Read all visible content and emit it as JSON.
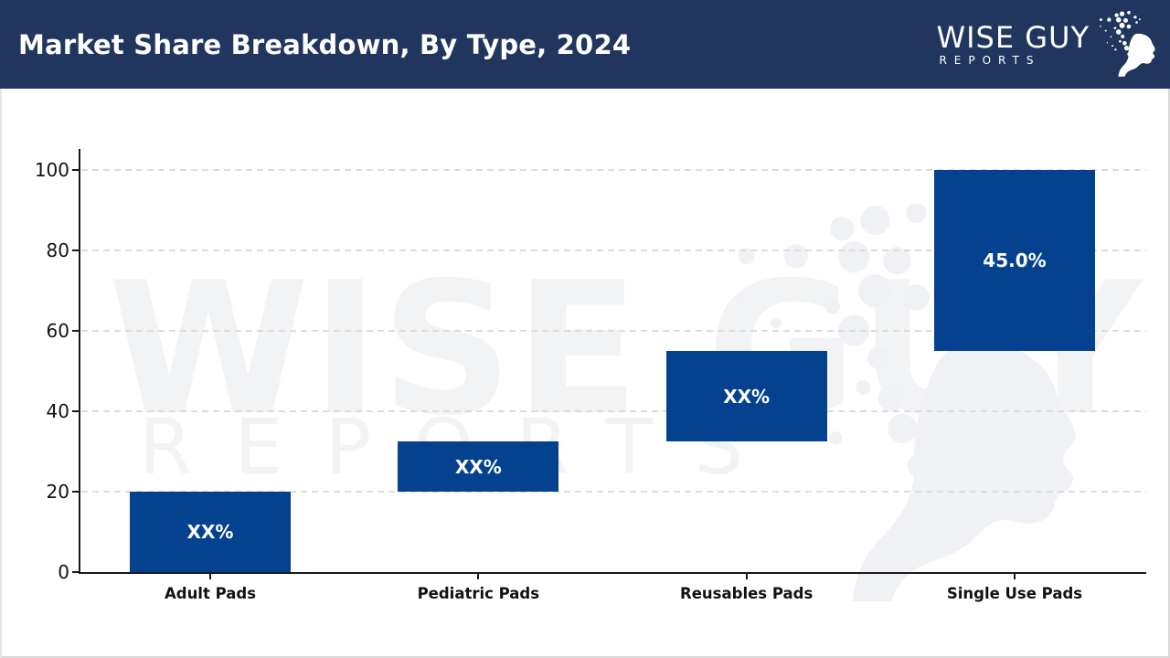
{
  "header": {
    "title": "Market Share Breakdown, By Type, 2024",
    "logo": {
      "line1": "WISE GUY",
      "line2": "REPORTS",
      "icon": "face-profile-dots-icon"
    }
  },
  "watermark": {
    "line1": "WISE GUY",
    "line2": "REPORTS"
  },
  "chart_data": {
    "type": "bar",
    "subtype": "waterfall-floating-bars",
    "title": "Market Share Breakdown, By Type, 2024",
    "categories": [
      "Adult Pads",
      "Pediatric Pads",
      "Reusables Pads",
      "Single Use Pads"
    ],
    "segments": [
      {
        "category": "Adult Pads",
        "start": 0,
        "end": 20,
        "value": 20,
        "label": "XX%"
      },
      {
        "category": "Pediatric Pads",
        "start": 20,
        "end": 32.5,
        "value": 12.5,
        "label": "XX%"
      },
      {
        "category": "Reusables Pads",
        "start": 32.5,
        "end": 55,
        "value": 22.5,
        "label": "XX%"
      },
      {
        "category": "Single Use Pads",
        "start": 55,
        "end": 100,
        "value": 45,
        "label": "45.0%"
      }
    ],
    "y_ticks": [
      0,
      20,
      40,
      60,
      80,
      100
    ],
    "ylim": [
      0,
      105
    ],
    "xlabel": "",
    "ylabel": "",
    "grid": "horizontal-dashed",
    "legend": "none",
    "bar_color": "#04418f",
    "bar_label_color": "#ffffff",
    "axis_color": "#1a1a1a",
    "grid_color": "#dcdcdc",
    "header_bg_color": "#21365f",
    "watermark_color": "#f2f3f5",
    "border_color": "#d9d9d9"
  }
}
